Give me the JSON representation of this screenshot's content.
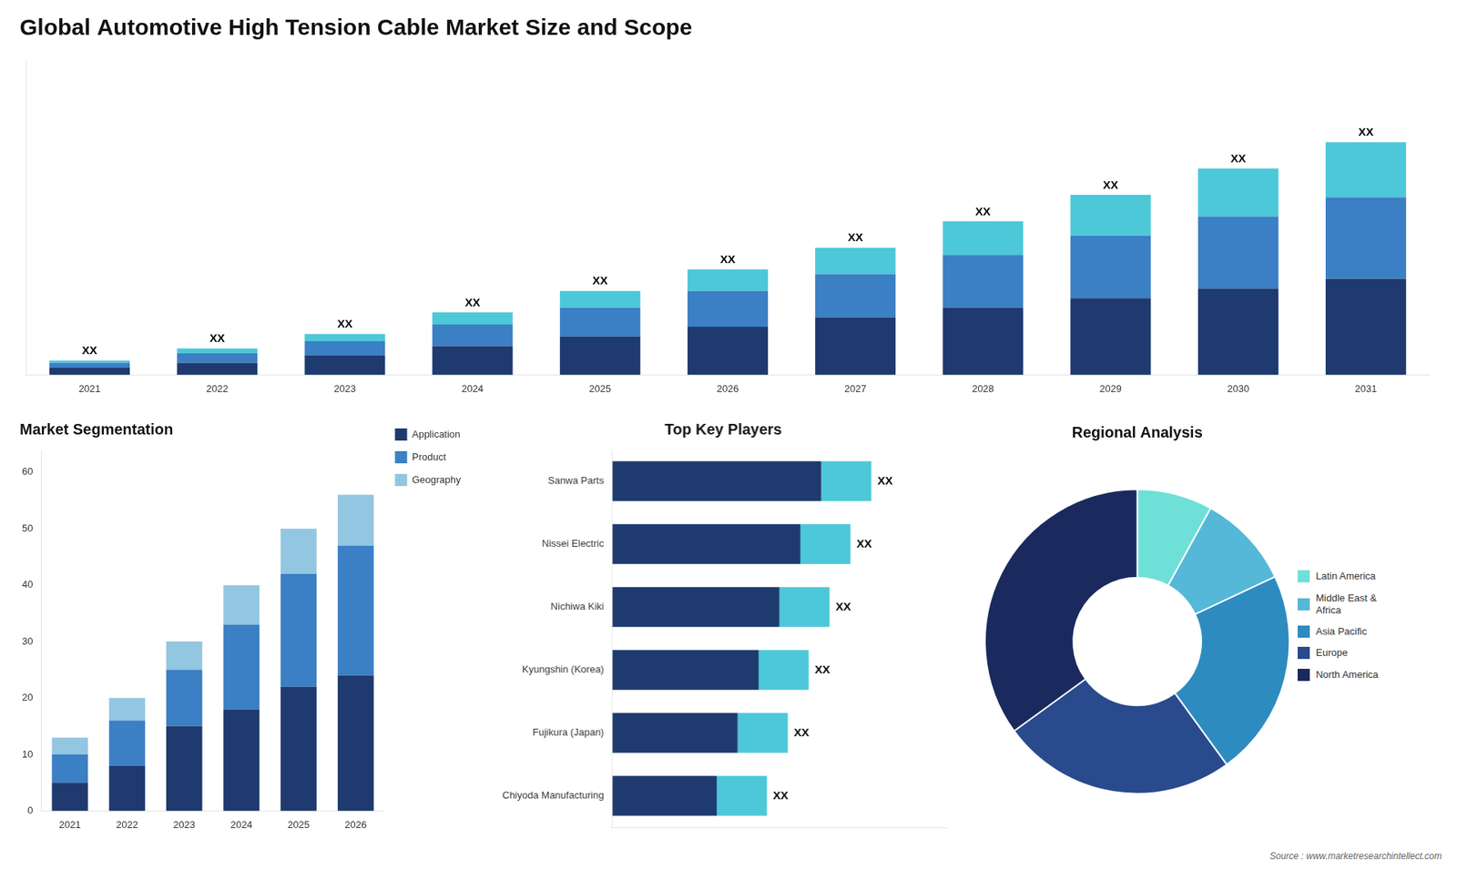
{
  "chart_data": [
    {
      "type": "bar",
      "title": "Global Automotive High Tension Cable Market Size and Scope",
      "stacked": true,
      "categories": [
        "2021",
        "2022",
        "2023",
        "2024",
        "2025",
        "2026",
        "2027",
        "2028",
        "2029",
        "2030",
        "2031"
      ],
      "series": [
        {
          "color": "#1e3a6e",
          "values": [
            3,
            5,
            8,
            12,
            16,
            20,
            24,
            28,
            32,
            36,
            40
          ]
        },
        {
          "color": "#3b7fc4",
          "values": [
            2,
            4,
            6,
            9,
            12,
            15,
            18,
            22,
            26,
            30,
            34
          ]
        },
        {
          "color": "#4dc8d8",
          "values": [
            1,
            2,
            3,
            5,
            7,
            9,
            11,
            14,
            17,
            20,
            23
          ],
          "value_labels": [
            "XX",
            "XX",
            "XX",
            "XX",
            "XX",
            "XX",
            "XX",
            "XX",
            "XX",
            "XX",
            "XX"
          ]
        }
      ],
      "ylim": [
        0,
        130.95
      ],
      "tick_labels": "x",
      "grid": false,
      "data_labels": true
    },
    {
      "type": "bar",
      "title": "Market Segmentation",
      "stacked": true,
      "categories": [
        "2021",
        "2022",
        "2023",
        "2024",
        "2025",
        "2026"
      ],
      "series": [
        {
          "name": "Application",
          "color": "#1e3a6e",
          "values": [
            5,
            8,
            15,
            18,
            22,
            24
          ]
        },
        {
          "name": "Product",
          "color": "#3b7fc4",
          "values": [
            5,
            8,
            10,
            15,
            20,
            23
          ]
        },
        {
          "name": "Geography",
          "color": "#93c6e0",
          "values": [
            3,
            4,
            5,
            7,
            8,
            9
          ]
        }
      ],
      "ylim": [
        0,
        64
      ],
      "yticks": [
        0,
        10,
        20,
        30,
        40,
        50,
        60
      ],
      "grid": false,
      "legend": "right"
    },
    {
      "type": "bar",
      "title": "Top Key Players",
      "stacked": true,
      "orientation": "horizontal",
      "categories": [
        "Sanwa Parts",
        "Nissei Electric",
        "Nichiwa Kiki",
        "Kyungshin (Korea)",
        "Fujikura (Japan)",
        "Chiyoda Manufacturing"
      ],
      "series": [
        {
          "color": "#1e3a6e",
          "values": [
            50,
            45,
            40,
            35,
            30,
            25
          ]
        },
        {
          "color": "#4dc8d8",
          "values": [
            12,
            12,
            12,
            12,
            12,
            12
          ],
          "value_labels": [
            "XX",
            "XX",
            "XX",
            "XX",
            "XX",
            "XX"
          ]
        }
      ],
      "xlim": [
        0,
        80
      ],
      "tick_labels": "y",
      "grid": false,
      "data_labels": true
    },
    {
      "type": "doughnut",
      "title": "Regional Analysis",
      "categories": [
        "Latin America",
        "Middle East &\nAfrica",
        "Asia Pacific",
        "Europe",
        "North America"
      ],
      "values": [
        8,
        10,
        22,
        25,
        35
      ],
      "colors": [
        "#6ee0d8",
        "#55b8d8",
        "#2e8bc0",
        "#2a4a8e",
        "#1a2a5e"
      ],
      "legend": "right",
      "annotation": "Source : www.marketresearchintellect.com"
    }
  ]
}
